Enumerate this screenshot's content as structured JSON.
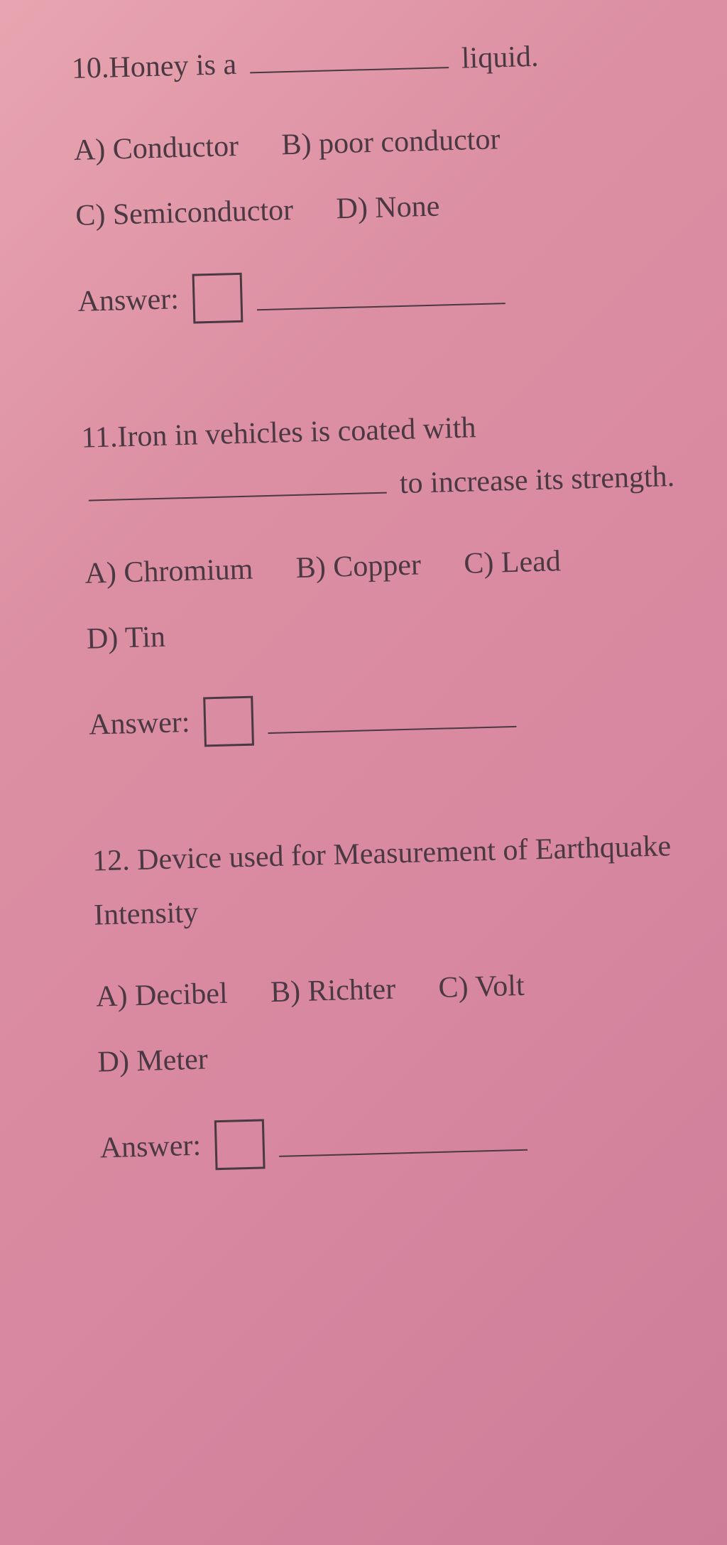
{
  "colors": {
    "background_gradient_start": "#e8a5b0",
    "background_gradient_end": "#cd7d98",
    "text_color": "#4a3842",
    "border_color": "#4a3842"
  },
  "typography": {
    "font_family": "Georgia, Times New Roman, serif",
    "question_fontsize": 42,
    "option_fontsize": 42,
    "answer_fontsize": 42
  },
  "questions": [
    {
      "number": "10",
      "text_before_blank": "10.Honey is a ",
      "text_after_blank": " liquid.",
      "options": {
        "a": "A) Conductor",
        "b": "B) poor conductor",
        "c": "C) Semiconductor",
        "d": "D) None"
      },
      "answer_label": "Answer:"
    },
    {
      "number": "11",
      "text_before_blank": "11.Iron in vehicles is coated with ",
      "text_after_blank": " to increase its strength.",
      "options": {
        "a": "A) Chromium",
        "b": "B) Copper",
        "c": "C) Lead",
        "d": "D) Tin"
      },
      "answer_label": "Answer:"
    },
    {
      "number": "12",
      "text_full": "12. Device used for Measurement of Earthquake Intensity",
      "options": {
        "a": "A) Decibel",
        "b": "B) Richter",
        "c": "C) Volt",
        "d": "D) Meter"
      },
      "answer_label": "Answer:"
    }
  ]
}
